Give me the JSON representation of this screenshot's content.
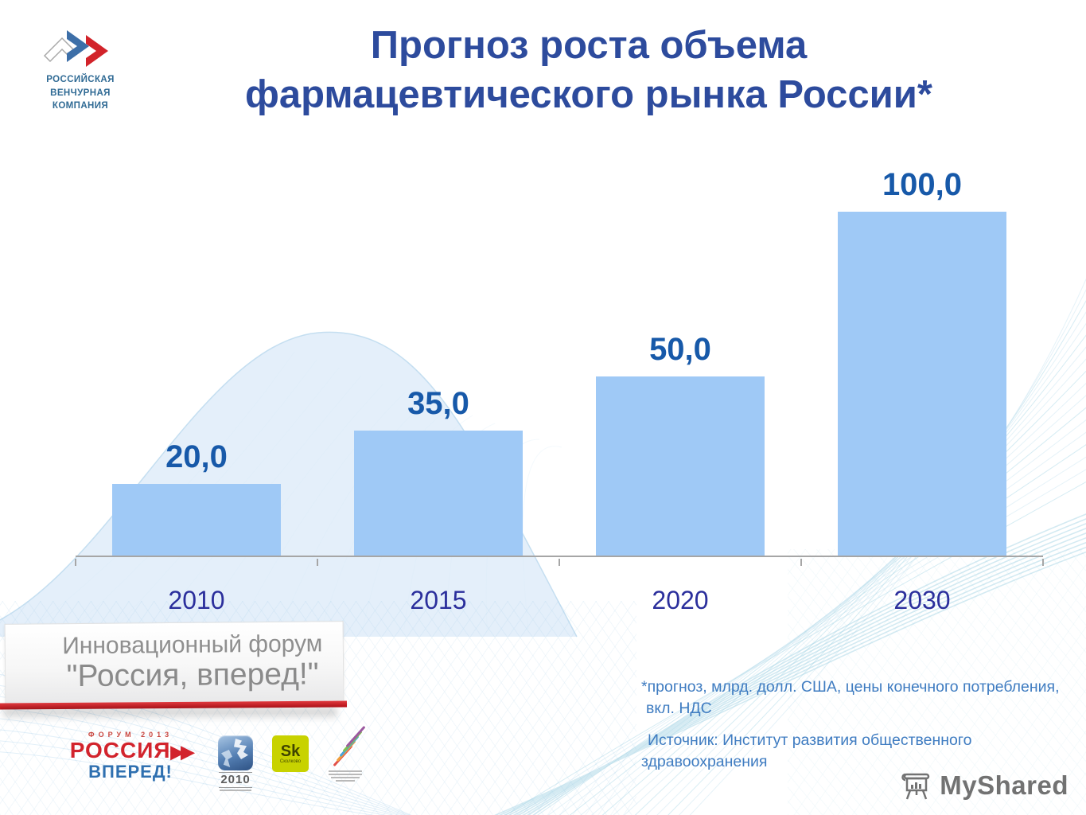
{
  "slide": {
    "title_line1": "Прогноз роста объема",
    "title_line2": "фармацевтического рынка России*"
  },
  "rvc_logo": {
    "line1": "РОССИЙСКАЯ ВЕНЧУРНАЯ",
    "line2": "КОМПАНИЯ"
  },
  "chart_data": {
    "type": "bar",
    "categories": [
      "2010",
      "2015",
      "2020",
      "2030"
    ],
    "values": [
      20.0,
      35.0,
      50.0,
      100.0
    ],
    "value_labels": [
      "20,0",
      "35,0",
      "50,0",
      "100,0"
    ],
    "title": "Прогноз роста объема фармацевтического рынка России*",
    "xlabel": "",
    "ylabel": "",
    "ylim": [
      0,
      109
    ],
    "grid": false,
    "legend": false,
    "bar_color": "#9fc9f6",
    "value_label_color": "#1759a9",
    "category_label_color": "#2b2f9c",
    "axis_color": "#a6a6a6"
  },
  "banner": {
    "line1": "Инновационный форум",
    "line2": "\"Россия, вперед!\""
  },
  "forum_logo": {
    "top": "ФОРУМ 2013",
    "main": "РОССИЯ",
    "arrows": "▶▶",
    "sub": "ВПЕРЕД!"
  },
  "partners": {
    "year_label": "2010",
    "sk_label": "Sk",
    "sk_sub": "Сколково"
  },
  "footnotes": {
    "note1": "*прогноз, млрд. долл. США,  цены конечного потребления, вкл. НДС",
    "note2": "Источник: Институт развития общественного здравоохранения"
  },
  "watermark": {
    "text": "MyShared"
  },
  "colors": {
    "title": "#2d4b9d",
    "accent_red": "#c4161c",
    "footnote_blue": "#3f7cc1"
  }
}
